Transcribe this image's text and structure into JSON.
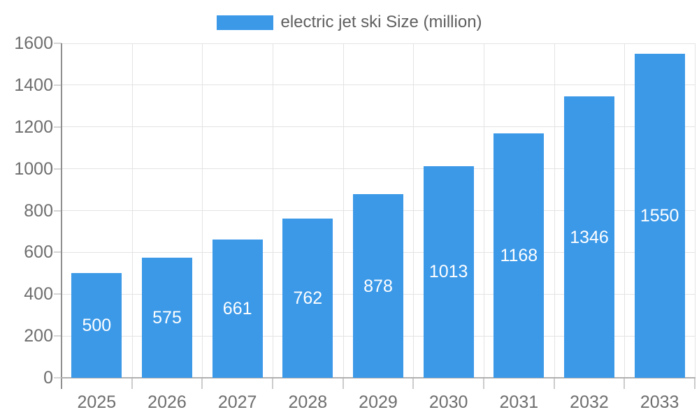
{
  "chart_data": {
    "type": "bar",
    "title": "electric jet ski Size (million)",
    "categories": [
      "2025",
      "2026",
      "2027",
      "2028",
      "2029",
      "2030",
      "2031",
      "2032",
      "2033"
    ],
    "series": [
      {
        "name": "electric jet ski Size (million)",
        "values": [
          500,
          575,
          661,
          762,
          878,
          1013,
          1168,
          1346,
          1550
        ]
      }
    ],
    "bar_value_labels": [
      "500",
      "575",
      "661",
      "762",
      "878",
      "1013",
      "1168",
      "1346",
      "1550"
    ],
    "xlabel": "",
    "ylabel": "",
    "ylim": [
      0,
      1600
    ],
    "ytick_step": 200,
    "y_tick_labels": [
      "0",
      "200",
      "400",
      "600",
      "800",
      "1000",
      "1200",
      "1400",
      "1600"
    ],
    "grid": true,
    "legend_position": "top-center",
    "bar_color": "#3b99e8",
    "bar_label_color": "#ffffff",
    "axis_text_color": "#6e6e6e",
    "legend_text_color": "#5f5f5f"
  },
  "legend": {
    "label": "electric jet ski Size (million)",
    "swatch_color": "#3b99e8"
  }
}
